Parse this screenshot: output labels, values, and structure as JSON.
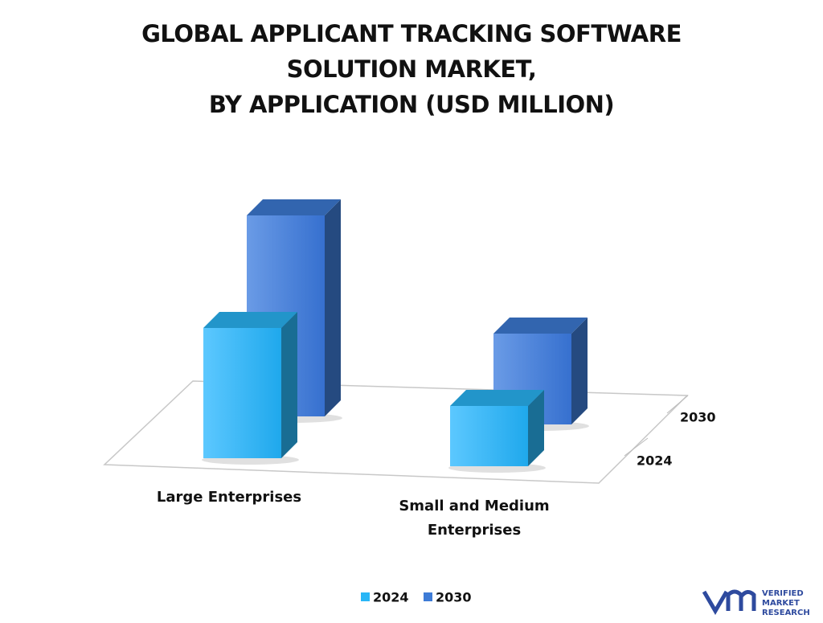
{
  "chart_data": {
    "type": "bar3d",
    "title": [
      "GLOBAL APPLICANT TRACKING SOFTWARE",
      "SOLUTION MARKET,",
      "BY APPLICATION (USD MILLION)"
    ],
    "categories": [
      "Large Enterprises",
      "Small and Medium Enterprises"
    ],
    "series": [
      {
        "name": "2024",
        "color": "#29b6f6",
        "values": [
          162,
          75
        ]
      },
      {
        "name": "2030",
        "color": "#3d7bd6",
        "values": [
          250,
          113
        ]
      }
    ]
  },
  "logo": {
    "lines": [
      "VERIFIED",
      "MARKET",
      "RESEARCH"
    ]
  }
}
